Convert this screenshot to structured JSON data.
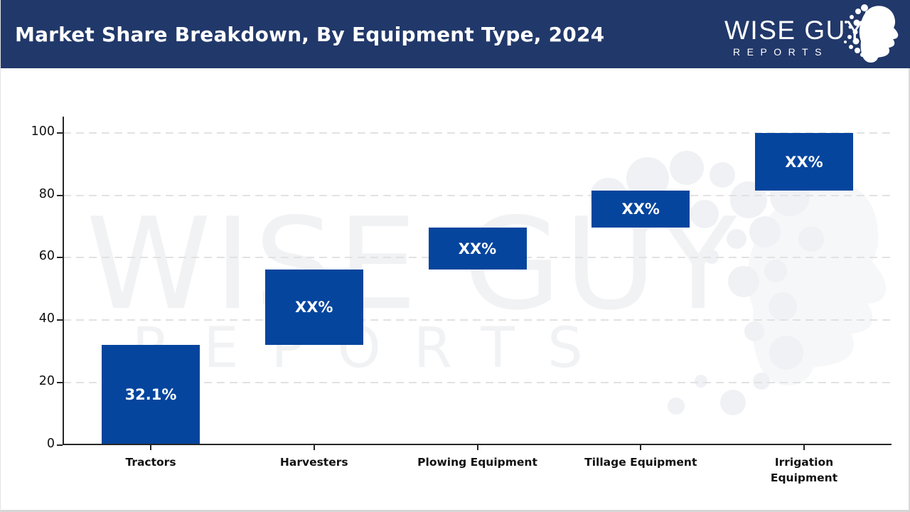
{
  "header": {
    "title": "Market Share Breakdown, By Equipment Type, 2024",
    "bg_color": "#21386a",
    "logo": {
      "line1": "WISE GUY",
      "line2": "REPORTS"
    }
  },
  "watermark": {
    "line1": "WISE GUY",
    "line2": "REPORTS"
  },
  "chart_data": {
    "type": "bar",
    "subtype": "waterfall",
    "title": "Market Share Breakdown, By Equipment Type, 2024",
    "categories": [
      "Tractors",
      "Harvesters",
      "Plowing Equipment",
      "Tillage Equipment",
      "Irrigation\nEquipment"
    ],
    "segments": [
      {
        "category": "Tractors",
        "start": 0,
        "end": 32.1,
        "label": "32.1%"
      },
      {
        "category": "Harvesters",
        "start": 32.1,
        "end": 56.2,
        "label": "XX%"
      },
      {
        "category": "Plowing Equipment",
        "start": 56.2,
        "end": 69.6,
        "label": "XX%"
      },
      {
        "category": "Tillage Equipment",
        "start": 69.6,
        "end": 81.5,
        "label": "XX%"
      },
      {
        "category": "Irrigation\nEquipment",
        "start": 81.5,
        "end": 100,
        "label": "XX%"
      }
    ],
    "xlabel": "",
    "ylabel": "",
    "ylim": [
      0,
      100
    ],
    "yticks": [
      0,
      20,
      40,
      60,
      80,
      100
    ],
    "grid": "horizontal-dashed",
    "legend": "none",
    "bar_color": "#05459e",
    "label_color": "#ffffff",
    "axis_color": "#262626",
    "grid_color": "#e2e2e2"
  }
}
